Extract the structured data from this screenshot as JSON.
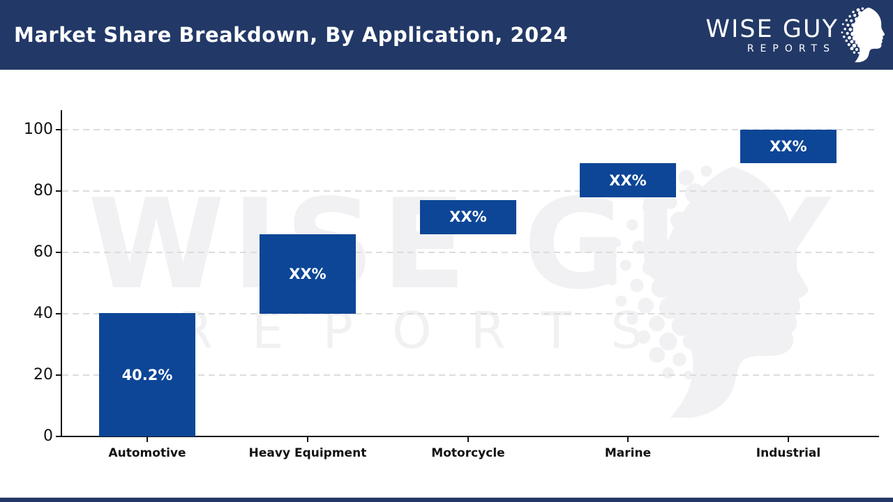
{
  "header": {
    "title": "Market Share Breakdown, By Application, 2024",
    "logo": {
      "line1": "WISE GUY",
      "line2": "REPORTS"
    }
  },
  "watermark": {
    "line1": "WISE GUY",
    "line2": "REPORTS"
  },
  "footer": {},
  "colors": {
    "header_navy": "#223967",
    "bar_blue": "#0d4697",
    "grid_gray": "#dcdcdc",
    "watermark_gray": "#f1f1f3",
    "axis_black": "#111111",
    "bar_label_white": "#ffffff"
  },
  "chart_data": {
    "type": "bar",
    "subtype": "waterfall",
    "title": "Market Share Breakdown, By Application, 2024",
    "categories": [
      "Automotive",
      "Heavy Equipment",
      "Motorcycle",
      "Marine",
      "Industrial"
    ],
    "segments": [
      {
        "category": "Automotive",
        "start": 0,
        "end": 40.2,
        "label": "40.2%"
      },
      {
        "category": "Heavy Equipment",
        "start": 40,
        "end": 66,
        "label": "XX%"
      },
      {
        "category": "Motorcycle",
        "start": 66,
        "end": 77,
        "label": "XX%"
      },
      {
        "category": "Marine",
        "start": 78,
        "end": 89,
        "label": "XX%"
      },
      {
        "category": "Industrial",
        "start": 89,
        "end": 100,
        "label": "XX%"
      }
    ],
    "xlabel": "",
    "ylabel": "",
    "yticks": [
      0,
      20,
      40,
      60,
      80,
      100
    ],
    "ylim": [
      0,
      106
    ],
    "grid": true,
    "grid_style": "dashed",
    "legend": false,
    "bar_color": "#0d4697",
    "bar_label_color": "#ffffff"
  }
}
